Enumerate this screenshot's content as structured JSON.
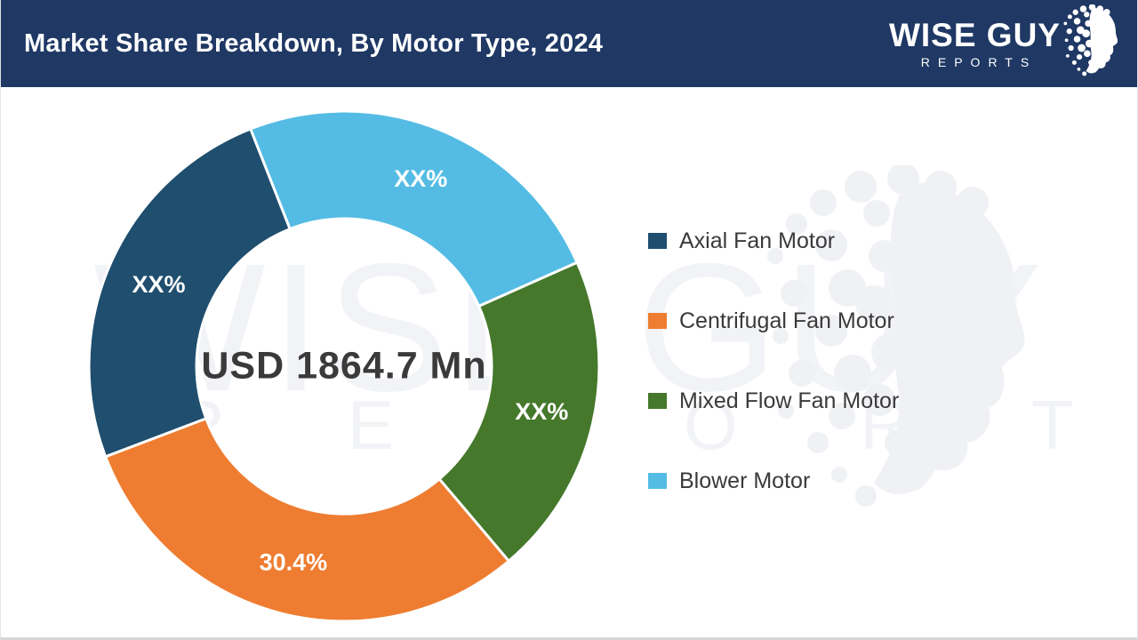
{
  "header": {
    "title": "Market Share Breakdown, By Motor Type, 2024",
    "bg_color": "#1F3864",
    "logo": {
      "brand_line1": "WISE GUY",
      "brand_line2": "REPORTS",
      "face_icon": "wiseguy-face-icon"
    }
  },
  "watermark": {
    "line1": "WISE GUY",
    "line2": "R E P O R T S",
    "face_icon": "wiseguy-face-icon",
    "color": "#F2F3F6"
  },
  "chart_data": {
    "type": "pie",
    "subtype": "donut",
    "title": "Market Share Breakdown, By Motor Type, 2024",
    "center_text": "USD 1864.7 Mn",
    "start_angle_deg_from_top_clockwise": -21.5,
    "sweep_direction": "counter-clockwise",
    "inner_radius_ratio": 0.58,
    "legend_position": "right",
    "slice_gap_color": "#FFFFFF",
    "series": [
      {
        "name": "Axial Fan Motor",
        "label": "XX%",
        "value_pct": 24.8,
        "color": "#1F4E6E"
      },
      {
        "name": "Centrifugal Fan Motor",
        "label": "30.4%",
        "value_pct": 30.4,
        "color": "#EE7D31"
      },
      {
        "name": "Mixed Flow Fan Motor",
        "label": "XX%",
        "value_pct": 20.5,
        "color": "#45782B"
      },
      {
        "name": "Blower Motor",
        "label": "XX%",
        "value_pct": 24.3,
        "color": "#54BCE4"
      }
    ]
  }
}
